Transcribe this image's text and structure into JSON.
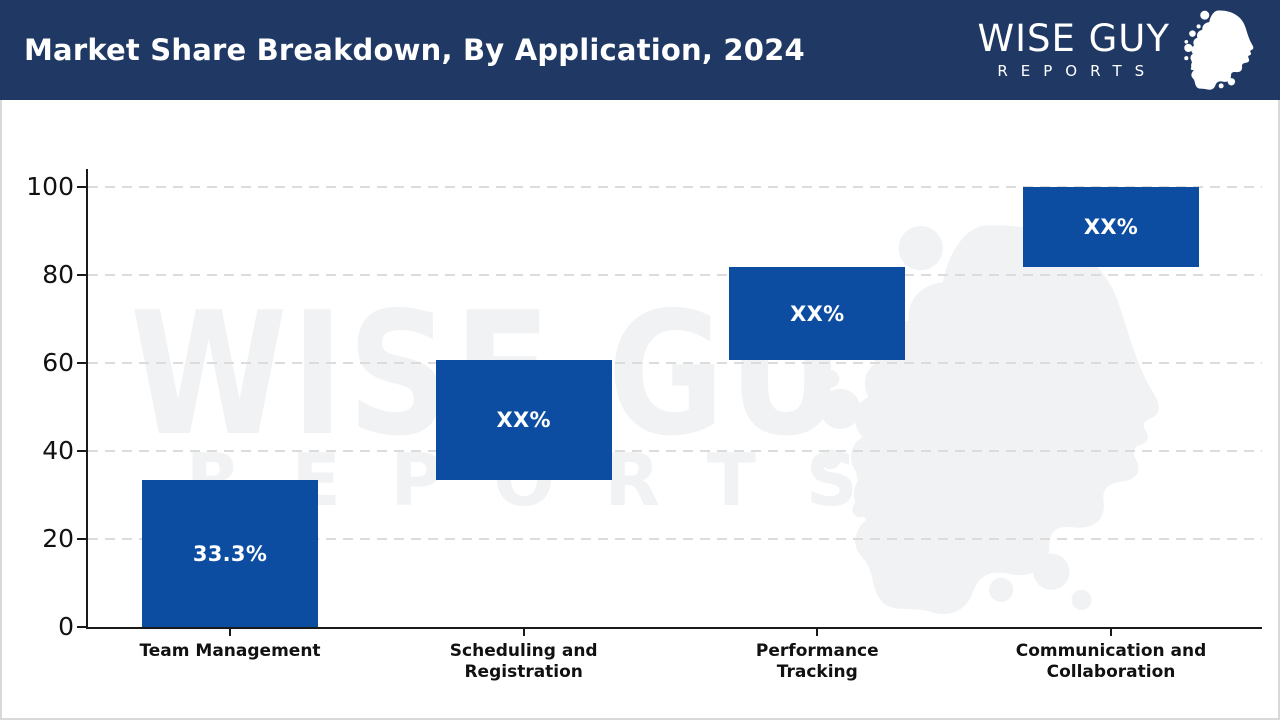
{
  "header": {
    "title": "Market Share Breakdown, By Application, 2024",
    "logo": {
      "primary": "WISE GUY",
      "secondary": "REPORTS"
    }
  },
  "watermark": {
    "primary": "WISE GUY",
    "secondary": "REPORTS"
  },
  "icons": {
    "logo_head": "dotted-face-profile",
    "watermark_face": "dotted-face-profile"
  },
  "colors": {
    "header_bg": "#1f3864",
    "bar": "#0c4da2",
    "bar_label": "#ffffff",
    "axis": "#1a1a1a",
    "grid": "#dcdcdc",
    "watermark": "#f1f2f4"
  },
  "chart_data": {
    "type": "bar",
    "variant": "waterfall",
    "title": "Market Share Breakdown, By Application, 2024",
    "xlabel": "",
    "ylabel": "",
    "ylim": [
      0,
      104
    ],
    "yticks": [
      0,
      20,
      40,
      60,
      80,
      100
    ],
    "grid": "horizontal-dashed",
    "legend": "none",
    "categories": [
      "Team Management",
      "Scheduling and\nRegistration",
      "Performance\nTracking",
      "Communication and\nCollaboration"
    ],
    "series": [
      {
        "name": "Market Share (%)",
        "segments": [
          {
            "category": "Team Management",
            "start": 0,
            "end": 33.3,
            "label": "33.3%"
          },
          {
            "category": "Scheduling and Registration",
            "start": 33.3,
            "end": 60.6,
            "label": "XX%"
          },
          {
            "category": "Performance Tracking",
            "start": 60.6,
            "end": 81.8,
            "label": "XX%"
          },
          {
            "category": "Communication and Collaboration",
            "start": 81.8,
            "end": 100,
            "label": "XX%"
          }
        ]
      }
    ]
  }
}
